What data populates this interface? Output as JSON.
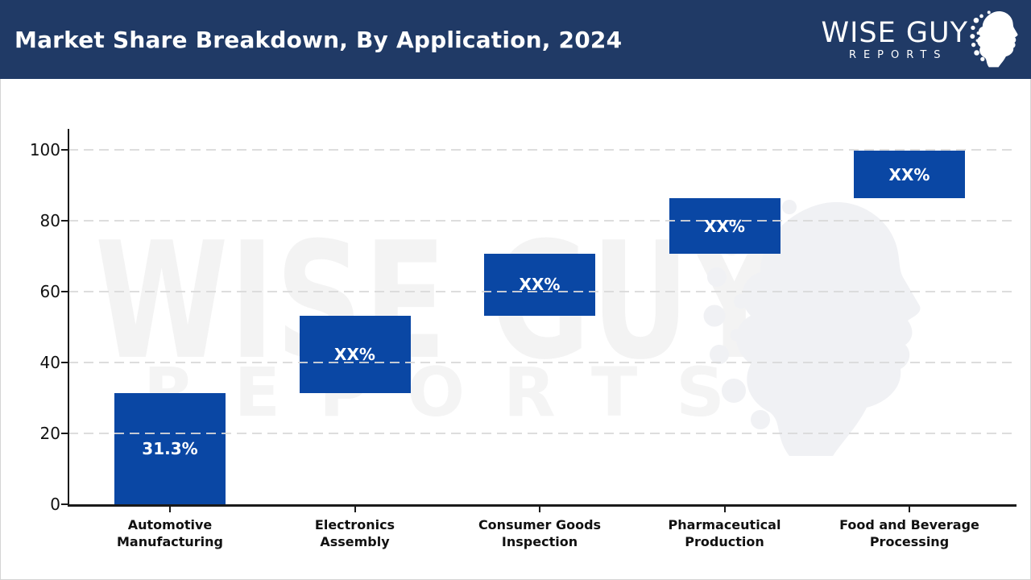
{
  "header": {
    "title": "Market Share Breakdown, By Application, 2024",
    "bg_color": "#203a66",
    "logo": {
      "name": "WISE GUY",
      "subtext": "REPORTS"
    }
  },
  "watermark": {
    "line1": "WISE GUY",
    "line2": "REPORTS"
  },
  "chart_data": {
    "type": "bar",
    "subtype": "waterfall",
    "title": "Market Share Breakdown, By Application, 2024",
    "categories": [
      "Automotive Manufacturing",
      "Electronics Assembly",
      "Consumer Goods Inspection",
      "Pharmaceutical Production",
      "Food and Beverage Processing"
    ],
    "bars": [
      {
        "label_lines": [
          "Automotive",
          "Manufacturing"
        ],
        "start": 0,
        "end": 31.3,
        "value_label": "31.3%"
      },
      {
        "label_lines": [
          "Electronics",
          "Assembly"
        ],
        "start": 31.3,
        "end": 53.2,
        "value_label": "XX%"
      },
      {
        "label_lines": [
          "Consumer Goods",
          "Inspection"
        ],
        "start": 53.2,
        "end": 70.7,
        "value_label": "XX%"
      },
      {
        "label_lines": [
          "Pharmaceutical",
          "Production"
        ],
        "start": 70.7,
        "end": 86.3,
        "value_label": "XX%"
      },
      {
        "label_lines": [
          "Food and Beverage",
          "Processing"
        ],
        "start": 86.3,
        "end": 99.7,
        "value_label": "XX%"
      }
    ],
    "yticks": [
      0,
      20,
      40,
      60,
      80,
      100
    ],
    "ylim": [
      0,
      106
    ],
    "grid": "horizontal-dashed",
    "legend": "none",
    "bar_color": "#0a47a4",
    "bar_label_color": "#ffffff",
    "axis_color": "#1a1a1a",
    "grid_color": "#d9d9d9"
  }
}
